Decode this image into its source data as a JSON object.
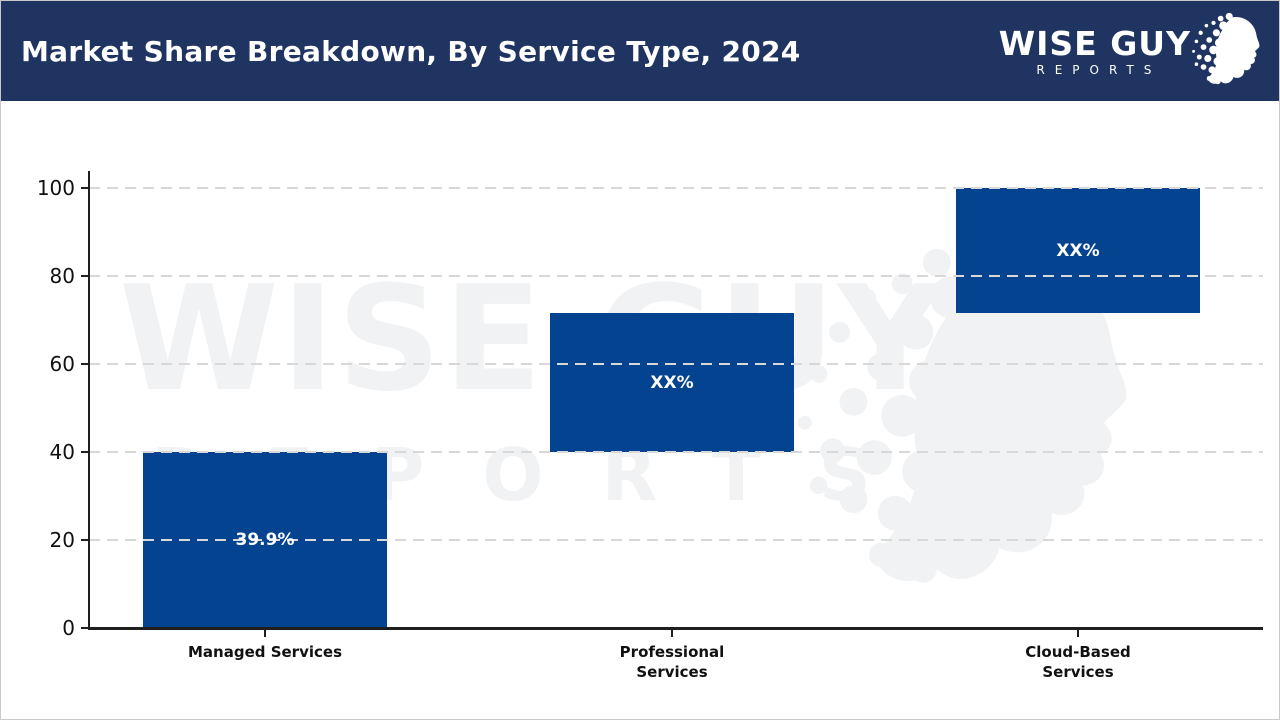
{
  "header": {
    "title": "Market Share Breakdown, By Service Type, 2024",
    "bg_color": "#203462",
    "logo": {
      "line1": "WISE GUY",
      "line2": "REPORTS"
    }
  },
  "watermark": {
    "line1": "WISE GUY",
    "line2": "REPORTS"
  },
  "chart_data": {
    "type": "bar",
    "subtype": "waterfall",
    "title": "Market Share Breakdown, By Service Type, 2024",
    "categories": [
      "Managed Services",
      "Professional\nServices",
      "Cloud-Based\nServices"
    ],
    "segments": [
      {
        "category": "Managed Services",
        "start": 0,
        "end": 39.9,
        "label": "39.9%"
      },
      {
        "category": "Professional Services",
        "start": 39.9,
        "end": 71.5,
        "label": "XX%"
      },
      {
        "category": "Cloud-Based Services",
        "start": 71.5,
        "end": 100,
        "label": "XX%"
      }
    ],
    "ylim": [
      0,
      100
    ],
    "yticks": [
      0,
      20,
      40,
      60,
      80,
      100
    ],
    "grid": "horizontal-dashed",
    "legend": "none",
    "bar_color": "#04438f",
    "label_color": "#ffffff",
    "axis_color": "#1f1f1f"
  }
}
